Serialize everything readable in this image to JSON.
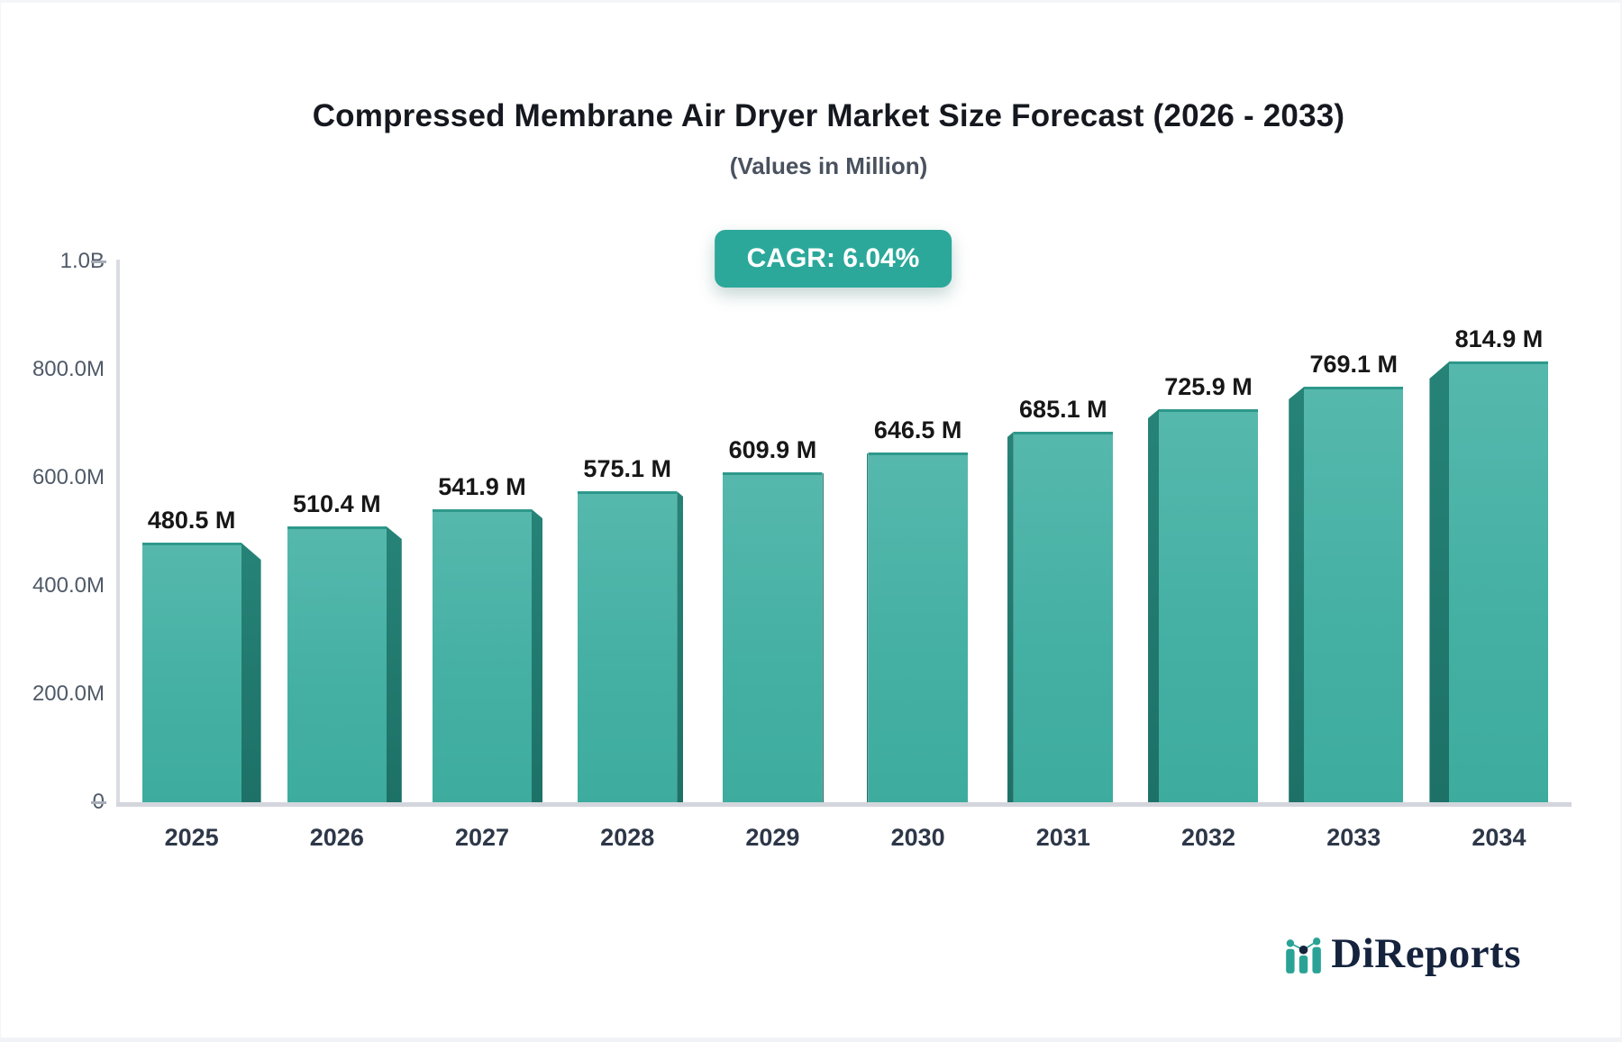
{
  "header": {
    "title": "Compressed Membrane Air Dryer Market Size Forecast (2026 - 2033)",
    "subtitle": "(Values in Million)"
  },
  "badge": {
    "label": "CAGR: 6.04%"
  },
  "logo": {
    "text": "DiReports",
    "icon": "bar-chart-logo-icon"
  },
  "colors": {
    "bar_face_top": "#56b8ad",
    "bar_face_bottom": "#3dac9e",
    "bar_side": "#217b71",
    "bar_top_edge": "#2e988b",
    "badge_bg": "#2ba89a",
    "axis_line": "#d3d6dc",
    "y_label": "#4f5a68",
    "x_label": "#2d3748",
    "value_label": "#171717",
    "logo_navy": "#15233d",
    "logo_teal": "#2aa396"
  },
  "chart_data": {
    "type": "bar",
    "title": "Compressed Membrane Air Dryer Market Size Forecast (2026 - 2033)",
    "subtitle": "(Values in Million)",
    "categories": [
      "2025",
      "2026",
      "2027",
      "2028",
      "2029",
      "2030",
      "2031",
      "2032",
      "2033",
      "2034"
    ],
    "values": [
      480.5,
      510.4,
      541.9,
      575.1,
      609.9,
      646.5,
      685.1,
      725.9,
      769.1,
      814.9
    ],
    "value_labels": [
      "480.5 M",
      "510.4 M",
      "541.9 M",
      "575.1 M",
      "609.9 M",
      "646.5 M",
      "685.1 M",
      "725.9 M",
      "769.1 M",
      "814.9 M"
    ],
    "unit": "Million USD",
    "xlabel": "",
    "ylabel": "",
    "ylim": [
      0,
      1000
    ],
    "y_ticks": [
      {
        "value": 0,
        "label": "0",
        "dash": true
      },
      {
        "value": 200,
        "label": "200.0M",
        "dash": false
      },
      {
        "value": 400,
        "label": "400.0M",
        "dash": false
      },
      {
        "value": 600,
        "label": "600.0M",
        "dash": false
      },
      {
        "value": 800,
        "label": "800.0M",
        "dash": false
      },
      {
        "value": 1000,
        "label": "1.0B",
        "dash": true
      }
    ],
    "grid": false,
    "legend": "none",
    "style": "3d-perspective-bars-center-vanishing-point",
    "annotation": "CAGR: 6.04%"
  }
}
